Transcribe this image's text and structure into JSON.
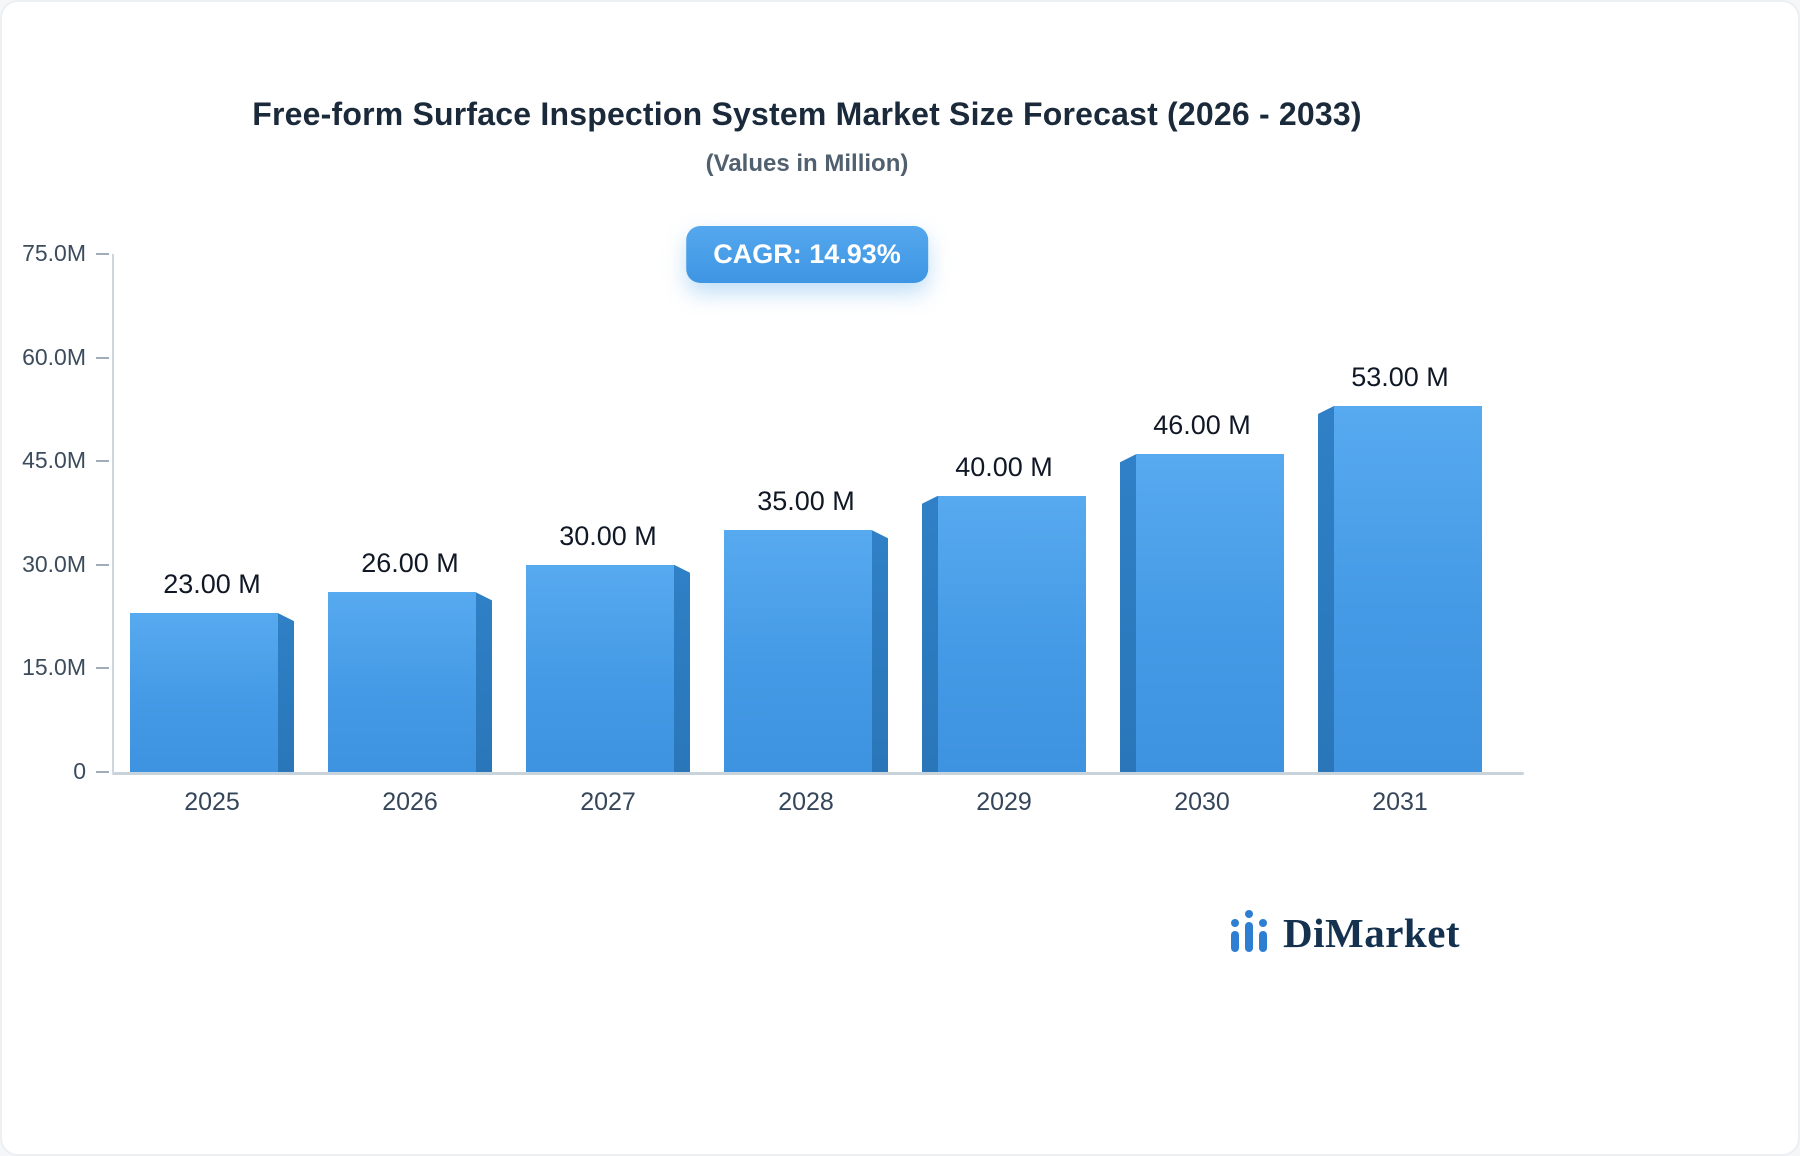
{
  "page": {
    "title": "Free-form Surface Inspection System Market Size Forecast (2026 - 2033)",
    "subtitle": "(Values in Million)",
    "badge": "CAGR: 14.93%"
  },
  "logo": {
    "text": "DiMarket"
  },
  "chart_data": {
    "type": "bar",
    "title": "Free-form Surface Inspection System Market Size Forecast (2026 - 2033)",
    "subtitle": "(Values in Million)",
    "cagr": "CAGR: 14.93%",
    "categories": [
      "2025",
      "2026",
      "2027",
      "2028",
      "2029",
      "2030",
      "2031"
    ],
    "values": [
      23,
      26,
      30,
      35,
      40,
      46,
      53
    ],
    "value_labels": [
      "23.00 M",
      "26.00 M",
      "30.00 M",
      "35.00 M",
      "40.00 M",
      "46.00 M",
      "53.00 M"
    ],
    "xlabel": "",
    "ylabel": "",
    "ylim": [
      0,
      75
    ],
    "y_ticks": [
      {
        "value": 75,
        "label": "75.0M"
      },
      {
        "value": 60,
        "label": "60.0M"
      },
      {
        "value": 45,
        "label": "45.0M"
      },
      {
        "value": 30,
        "label": "30.0M"
      },
      {
        "value": 15,
        "label": "15.0M"
      },
      {
        "value": 0,
        "label": "0"
      }
    ],
    "grid": false,
    "legend": false,
    "colors": {
      "bar_main": "#459ae6",
      "bar_side": "#2d7cc0",
      "axis": "#ccd6df",
      "tick_label": "#3c4c5c",
      "value_label": "#101826",
      "badge_bg": "#4aa0e9",
      "logo_blue": "#2e7fd2",
      "logo_navy": "#14314f"
    }
  }
}
